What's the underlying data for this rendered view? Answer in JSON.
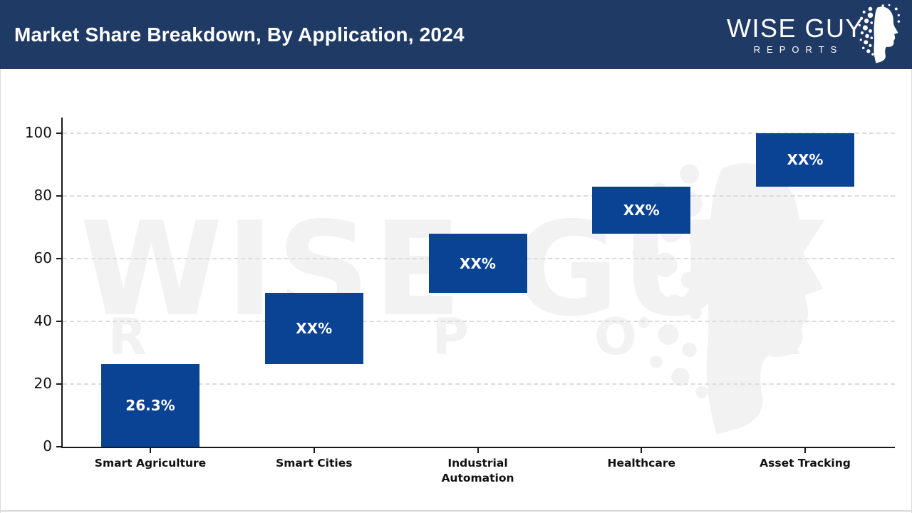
{
  "header": {
    "title": "Market Share Breakdown, By Application, 2024",
    "logo": {
      "line1": "WISE GUY",
      "line2": "REPORTS",
      "head_icon": "dotted-face-profile"
    }
  },
  "watermark": {
    "line1": "WISE GUY",
    "line2": "R E P O R T S",
    "head_icon": "dotted-face-profile"
  },
  "colors": {
    "header_bg": "#203A66",
    "header_text": "#ffffff",
    "bar_fill": "#0A4294",
    "bar_label_text": "#ffffff",
    "gridline": "#dcdcdc",
    "axis": "#1a1a1a",
    "watermark": "#f2f2f2",
    "frame_line": "#d9d9d9"
  },
  "chart_data": {
    "type": "bar",
    "subtype": "floating-waterfall",
    "title": "",
    "xlabel": "",
    "ylabel": "",
    "categories": [
      "Smart Agriculture",
      "Smart Cities",
      "Industrial Automation",
      "Healthcare",
      "Asset Tracking"
    ],
    "category_display": [
      "Smart Agriculture",
      "Smart Cities",
      "Industrial\nAutomation",
      "Healthcare",
      "Asset Tracking"
    ],
    "series": [
      {
        "name": "Market Share %",
        "segments": [
          {
            "category": "Smart Agriculture",
            "start": 0,
            "end": 26.3,
            "label": "26.3%"
          },
          {
            "category": "Smart Cities",
            "start": 26.3,
            "end": 49,
            "label": "XX%"
          },
          {
            "category": "Industrial Automation",
            "start": 49,
            "end": 68,
            "label": "XX%"
          },
          {
            "category": "Healthcare",
            "start": 68,
            "end": 83,
            "label": "XX%"
          },
          {
            "category": "Asset Tracking",
            "start": 83,
            "end": 100,
            "label": "XX%"
          }
        ]
      }
    ],
    "ylim": [
      0,
      105
    ],
    "yticks": [
      0,
      20,
      40,
      60,
      80,
      100
    ],
    "grid": "horizontal-dashed",
    "legend": "none"
  }
}
